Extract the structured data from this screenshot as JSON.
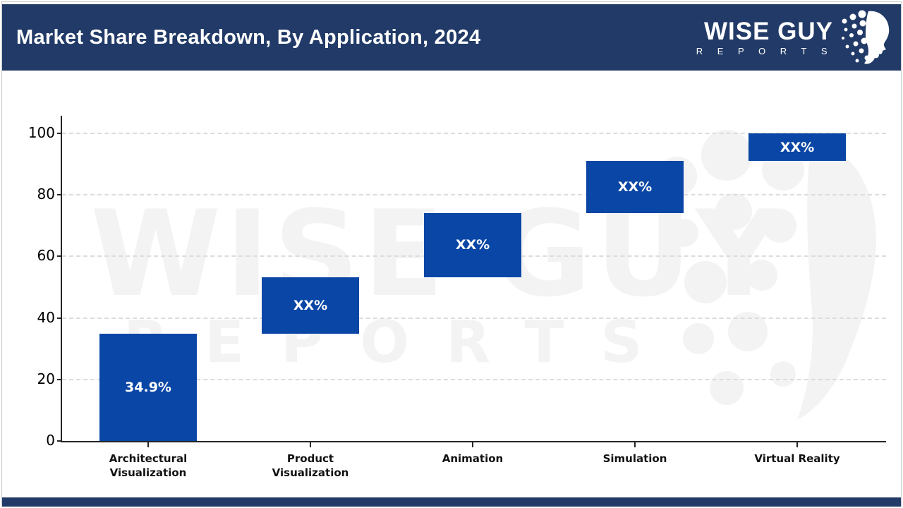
{
  "header": {
    "title": "Market Share Breakdown, By Application, 2024",
    "bg_color": "#213A67",
    "logo": {
      "line1": "WISE GUY",
      "line2": "R E P O R T S"
    }
  },
  "watermark": {
    "line1": "WISE GUY",
    "line2": "REPORTS",
    "color": "#f3f3f3"
  },
  "footer": {
    "bg_color": "#213A67"
  },
  "chart_data": {
    "type": "bar",
    "subtype": "waterfall",
    "title": "Market Share Breakdown, By Application, 2024",
    "categories": [
      "Architectural Visualization",
      "Product Visualization",
      "Animation",
      "Simulation",
      "Virtual Reality"
    ],
    "wrap": [
      true,
      true,
      false,
      false,
      false
    ],
    "series": [
      {
        "name": "Market Share %",
        "segments": [
          {
            "category": "Architectural Visualization",
            "start": 0,
            "end": 34.9,
            "label": "34.9%"
          },
          {
            "category": "Product Visualization",
            "start": 34.9,
            "end": 53.2,
            "label": "XX%"
          },
          {
            "category": "Animation",
            "start": 53.2,
            "end": 74.1,
            "label": "XX%"
          },
          {
            "category": "Simulation",
            "start": 74.1,
            "end": 91.0,
            "label": "XX%"
          },
          {
            "category": "Virtual Reality",
            "start": 91.0,
            "end": 100,
            "label": "XX%"
          }
        ]
      }
    ],
    "xlabel": "",
    "ylabel": "",
    "ylim": [
      0,
      100
    ],
    "yticks": [
      0,
      20,
      40,
      60,
      80,
      100
    ],
    "grid": "horizontal-dashed",
    "legend": "none",
    "bar_color": "#0A46A5",
    "bar_label_color": "#ffffff"
  }
}
